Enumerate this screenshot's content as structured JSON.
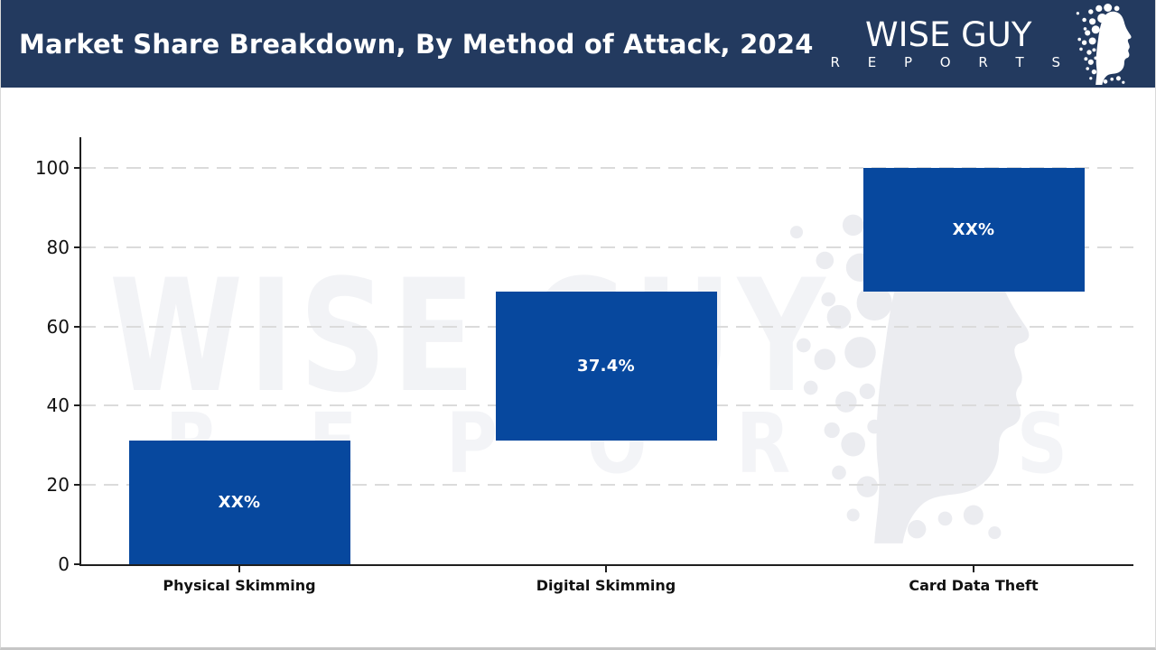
{
  "header": {
    "title": "Market Share Breakdown, By Method of Attack, 2024",
    "bg_color": "#233a5f",
    "logo": {
      "line1": "WISE GUY",
      "line2": "R E P O R T S"
    }
  },
  "watermark": {
    "line1": "WISE GUY",
    "line2": "R E P O R T S"
  },
  "chart_data": {
    "type": "bar",
    "subtype": "waterfall",
    "title": "Market Share Breakdown, By Method of Attack, 2024",
    "categories": [
      "Physical Skimming",
      "Digital Skimming",
      "Card Data Theft"
    ],
    "segments": [
      {
        "category": "Physical Skimming",
        "start": 0,
        "end": 31.3,
        "label": "XX%"
      },
      {
        "category": "Digital Skimming",
        "start": 31.3,
        "end": 68.7,
        "label": "37.4%"
      },
      {
        "category": "Card Data Theft",
        "start": 68.7,
        "end": 100,
        "label": "XX%"
      }
    ],
    "ylim": [
      0,
      100
    ],
    "yticks": [
      0,
      20,
      40,
      60,
      80,
      100
    ],
    "xlabel": "",
    "ylabel": "",
    "grid": "horizontal-dashed",
    "legend": "none",
    "bar_color": "#07489e",
    "bar_label_color": "#ffffff",
    "axis_color": "#1f1f1f"
  }
}
